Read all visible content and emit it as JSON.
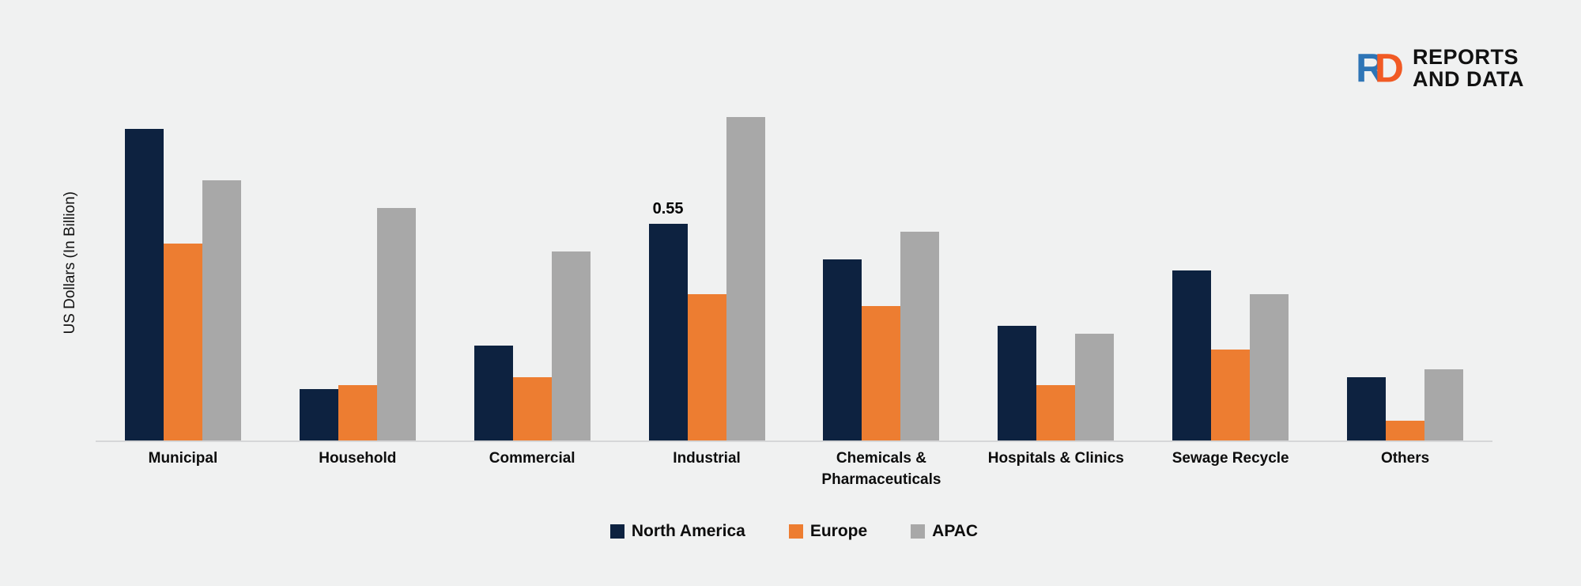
{
  "figure": {
    "background": "#f0f1f1"
  },
  "logo": {
    "mark_r": "R",
    "mark_d": "D",
    "line1": "REPORTS",
    "line2": "AND DATA",
    "colors": {
      "blue": "#2e75b6",
      "light_blue": "#29abe2",
      "orange": "#f15a24"
    }
  },
  "chart_data": {
    "type": "bar",
    "title": "",
    "xlabel": "",
    "ylabel": "US Dollars  (In Billion)",
    "ylim": [
      0,
      0.9
    ],
    "grid": false,
    "legend_position": "bottom",
    "categories": [
      "Municipal",
      "Household",
      "Commercial",
      "Industrial",
      "Chemicals & Pharmaceuticals",
      "Hospitals & Clinics",
      "Sewage Recycle",
      "Others"
    ],
    "series": [
      {
        "name": "North America",
        "color": "#0d2240",
        "values": [
          0.79,
          0.13,
          0.24,
          0.55,
          0.46,
          0.29,
          0.43,
          0.16
        ]
      },
      {
        "name": "Europe",
        "color": "#ed7d31",
        "values": [
          0.5,
          0.14,
          0.16,
          0.37,
          0.34,
          0.14,
          0.23,
          0.05
        ]
      },
      {
        "name": "APAC",
        "color": "#a8a8a8",
        "values": [
          0.66,
          0.59,
          0.48,
          0.82,
          0.53,
          0.27,
          0.37,
          0.18
        ]
      }
    ],
    "annotations": [
      {
        "category": "Industrial",
        "series": "North America",
        "text": "0.55"
      }
    ]
  }
}
